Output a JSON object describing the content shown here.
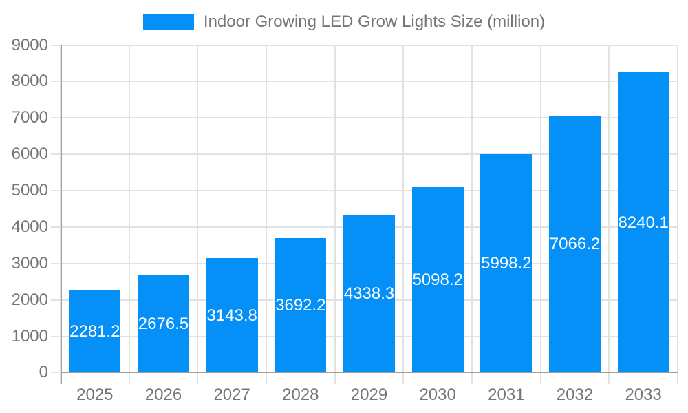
{
  "legend": {
    "label": "Indoor Growing LED Grow Lights Size (million)"
  },
  "colors": {
    "bar": "#0590f8",
    "grid": "#e2e2e2",
    "axis": "#9e9e9e",
    "tick_text": "#757575",
    "bar_label_text": "#ffffff",
    "background": "#ffffff"
  },
  "chart_data": {
    "type": "bar",
    "title": "Indoor Growing LED Grow Lights Size (million)",
    "categories": [
      "2025",
      "2026",
      "2027",
      "2028",
      "2029",
      "2030",
      "2031",
      "2032",
      "2033"
    ],
    "values": [
      2281.2,
      2676.5,
      3143.8,
      3692.2,
      4338.3,
      5098.2,
      5998.2,
      7066.2,
      8240.1
    ],
    "bar_labels": [
      "2281.2",
      "2676.5",
      "3143.8",
      "3692.2",
      "4338.3",
      "5098.2",
      "5998.2",
      "7066.2",
      "8240.1"
    ],
    "xlabel": "",
    "ylabel": "",
    "ylim": [
      0,
      9000
    ],
    "yticks": [
      0,
      1000,
      2000,
      3000,
      4000,
      5000,
      6000,
      7000,
      8000,
      9000
    ],
    "ytick_labels": [
      "0",
      "1000",
      "2000",
      "3000",
      "4000",
      "5000",
      "6000",
      "7000",
      "8000",
      "9000"
    ],
    "grid": true,
    "legend_position": "top-center",
    "bar_label_position": "center-inside"
  }
}
